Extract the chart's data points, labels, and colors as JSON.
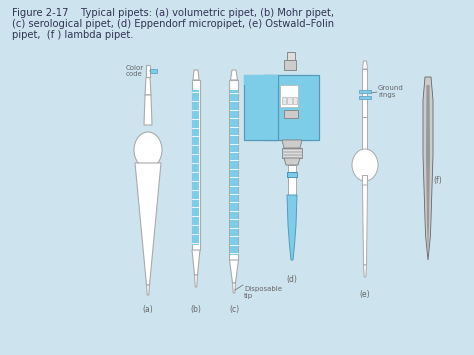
{
  "title_line1": "Figure 2-17    Typical pipets: (a) volumetric pipet, (b) Mohr pipet,",
  "title_line2": "(c) serological pipet, (d) Eppendorf micropipet, (e) Ostwald–Folin",
  "title_line3": "pipet,  (f ) lambda pipet.",
  "bg_color": "#cde4ef",
  "light_blue": "#7ecde8",
  "mid_blue": "#5ab8d8",
  "dark_blue": "#3a8ab0",
  "grad_blue": "#8dd4ea",
  "outline": "#aaaaaa",
  "label_color": "#666666",
  "text_color": "#333355",
  "label_fontsize": 5.0,
  "title_fontsize": 7.2
}
